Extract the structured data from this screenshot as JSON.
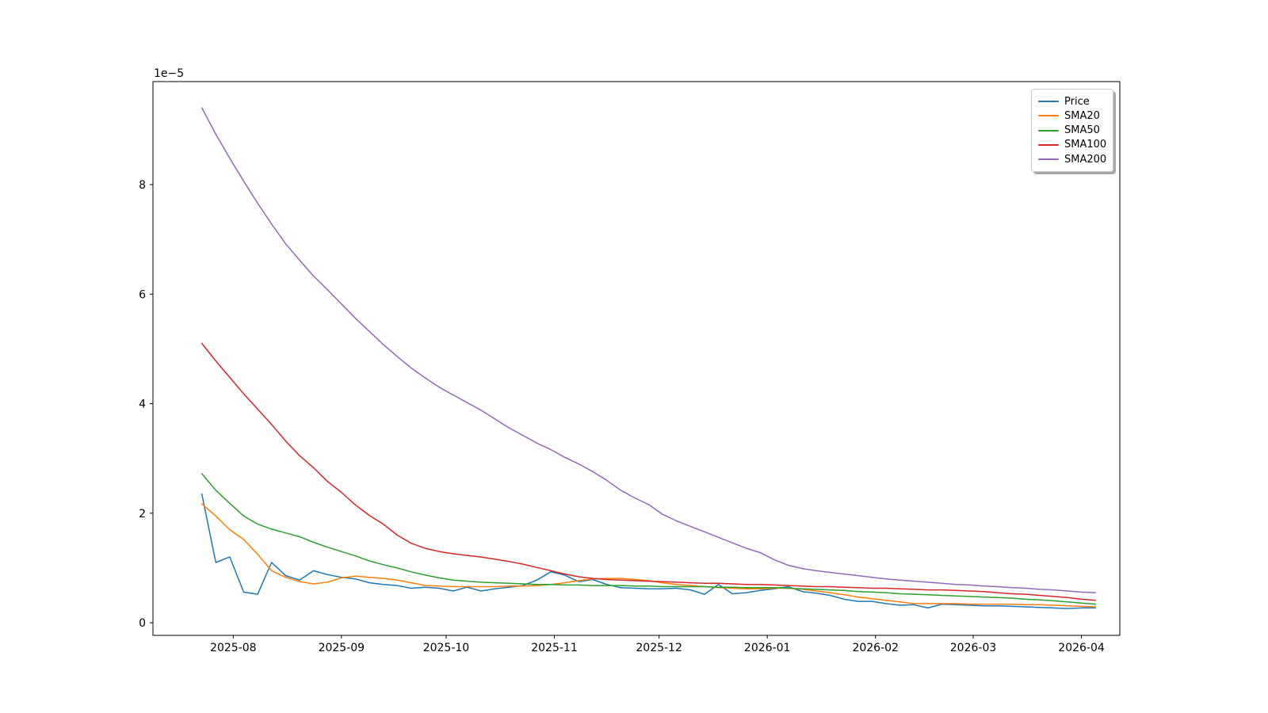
{
  "figure": {
    "background": "#ffffff"
  },
  "chart_data": {
    "type": "line",
    "title": "",
    "xlabel": "",
    "ylabel": "",
    "grid": false,
    "legend_position": "upper right",
    "x": [
      "2025-07-23",
      "2025-07-27",
      "2025-07-31",
      "2025-08-04",
      "2025-08-08",
      "2025-08-12",
      "2025-08-16",
      "2025-08-20",
      "2025-08-24",
      "2025-08-28",
      "2025-09-01",
      "2025-09-05",
      "2025-09-09",
      "2025-09-13",
      "2025-09-17",
      "2025-09-21",
      "2025-09-25",
      "2025-09-29",
      "2025-10-03",
      "2025-10-07",
      "2025-10-11",
      "2025-10-15",
      "2025-10-19",
      "2025-10-23",
      "2025-10-27",
      "2025-10-31",
      "2025-11-04",
      "2025-11-08",
      "2025-11-12",
      "2025-11-16",
      "2025-11-20",
      "2025-11-24",
      "2025-11-28",
      "2025-12-02",
      "2025-12-06",
      "2025-12-10",
      "2025-12-14",
      "2025-12-18",
      "2025-12-22",
      "2025-12-26",
      "2025-12-30",
      "2026-01-03",
      "2026-01-07",
      "2026-01-11",
      "2026-01-15",
      "2026-01-19",
      "2026-01-23",
      "2026-01-27",
      "2026-01-31",
      "2026-02-04",
      "2026-02-08",
      "2026-02-12",
      "2026-02-16",
      "2026-02-20",
      "2026-02-24",
      "2026-02-28",
      "2026-03-04",
      "2026-03-08",
      "2026-03-12",
      "2026-03-16",
      "2026-03-20",
      "2026-03-24",
      "2026-03-28",
      "2026-04-01",
      "2026-04-05"
    ],
    "values_unit": "1e-5",
    "series": [
      {
        "name": "Price",
        "color": "#1f77b4",
        "values": [
          2.35,
          1.1,
          1.2,
          0.56,
          0.52,
          1.1,
          0.86,
          0.78,
          0.95,
          0.88,
          0.83,
          0.8,
          0.73,
          0.7,
          0.68,
          0.63,
          0.65,
          0.63,
          0.58,
          0.65,
          0.58,
          0.62,
          0.65,
          0.68,
          0.78,
          0.93,
          0.87,
          0.75,
          0.79,
          0.7,
          0.64,
          0.63,
          0.62,
          0.62,
          0.63,
          0.6,
          0.52,
          0.7,
          0.53,
          0.55,
          0.59,
          0.62,
          0.66,
          0.57,
          0.54,
          0.5,
          0.43,
          0.39,
          0.39,
          0.35,
          0.32,
          0.33,
          0.27,
          0.34,
          0.33,
          0.32,
          0.31,
          0.31,
          0.3,
          0.29,
          0.28,
          0.27,
          0.26,
          0.27,
          0.27
        ]
      },
      {
        "name": "SMA20",
        "color": "#ff7f0e",
        "values": [
          2.17,
          1.95,
          1.7,
          1.52,
          1.25,
          0.95,
          0.83,
          0.75,
          0.71,
          0.74,
          0.82,
          0.85,
          0.83,
          0.81,
          0.78,
          0.73,
          0.68,
          0.67,
          0.66,
          0.66,
          0.66,
          0.66,
          0.67,
          0.67,
          0.68,
          0.7,
          0.73,
          0.77,
          0.8,
          0.81,
          0.81,
          0.79,
          0.77,
          0.73,
          0.7,
          0.68,
          0.66,
          0.64,
          0.63,
          0.62,
          0.62,
          0.63,
          0.63,
          0.61,
          0.58,
          0.55,
          0.51,
          0.47,
          0.44,
          0.41,
          0.38,
          0.35,
          0.35,
          0.35,
          0.35,
          0.34,
          0.34,
          0.34,
          0.34,
          0.33,
          0.33,
          0.32,
          0.31,
          0.3,
          0.29
        ]
      },
      {
        "name": "SMA50",
        "color": "#2ca02c",
        "values": [
          2.72,
          2.42,
          2.18,
          1.95,
          1.8,
          1.71,
          1.64,
          1.57,
          1.47,
          1.38,
          1.3,
          1.22,
          1.13,
          1.06,
          1.0,
          0.93,
          0.87,
          0.82,
          0.78,
          0.76,
          0.74,
          0.73,
          0.72,
          0.71,
          0.7,
          0.7,
          0.69,
          0.69,
          0.68,
          0.68,
          0.68,
          0.67,
          0.67,
          0.66,
          0.66,
          0.66,
          0.66,
          0.65,
          0.65,
          0.64,
          0.64,
          0.64,
          0.63,
          0.62,
          0.61,
          0.6,
          0.59,
          0.57,
          0.56,
          0.55,
          0.53,
          0.52,
          0.51,
          0.5,
          0.49,
          0.48,
          0.47,
          0.46,
          0.45,
          0.43,
          0.42,
          0.4,
          0.38,
          0.36,
          0.34
        ]
      },
      {
        "name": "SMA100",
        "color": "#d62728",
        "values": [
          5.1,
          4.78,
          4.48,
          4.18,
          3.9,
          3.62,
          3.32,
          3.05,
          2.83,
          2.58,
          2.38,
          2.15,
          1.96,
          1.8,
          1.6,
          1.45,
          1.36,
          1.3,
          1.26,
          1.23,
          1.2,
          1.16,
          1.12,
          1.07,
          1.01,
          0.95,
          0.89,
          0.84,
          0.81,
          0.79,
          0.78,
          0.77,
          0.76,
          0.75,
          0.74,
          0.73,
          0.72,
          0.72,
          0.71,
          0.7,
          0.7,
          0.69,
          0.68,
          0.67,
          0.66,
          0.66,
          0.65,
          0.64,
          0.63,
          0.63,
          0.62,
          0.61,
          0.6,
          0.6,
          0.59,
          0.58,
          0.57,
          0.55,
          0.53,
          0.52,
          0.5,
          0.48,
          0.46,
          0.43,
          0.41
        ]
      },
      {
        "name": "SMA200",
        "color": "#9467bd",
        "values": [
          9.4,
          8.92,
          8.48,
          8.06,
          7.66,
          7.28,
          6.92,
          6.62,
          6.33,
          6.08,
          5.82,
          5.56,
          5.32,
          5.08,
          4.86,
          4.65,
          4.47,
          4.3,
          4.16,
          4.02,
          3.88,
          3.72,
          3.56,
          3.42,
          3.28,
          3.16,
          3.02,
          2.9,
          2.76,
          2.6,
          2.42,
          2.28,
          2.16,
          1.98,
          1.86,
          1.76,
          1.66,
          1.56,
          1.46,
          1.36,
          1.28,
          1.15,
          1.05,
          0.99,
          0.95,
          0.92,
          0.89,
          0.86,
          0.83,
          0.8,
          0.78,
          0.76,
          0.74,
          0.72,
          0.7,
          0.69,
          0.67,
          0.66,
          0.64,
          0.63,
          0.61,
          0.6,
          0.58,
          0.56,
          0.55
        ]
      }
    ],
    "x_axis": {
      "tick_labels": [
        "2025-08",
        "2025-09",
        "2025-10",
        "2025-11",
        "2025-12",
        "2026-01",
        "2026-02",
        "2026-03",
        "2026-04"
      ],
      "lim": [
        "2025-07-09",
        "2026-04-12"
      ]
    },
    "y_axis": {
      "offset_label": "1e−5",
      "ticks": [
        0,
        2,
        4,
        6,
        8
      ],
      "lim": [
        -0.23,
        9.88
      ]
    },
    "legend": {
      "labels": [
        "Price",
        "SMA20",
        "SMA50",
        "SMA100",
        "SMA200"
      ]
    }
  }
}
